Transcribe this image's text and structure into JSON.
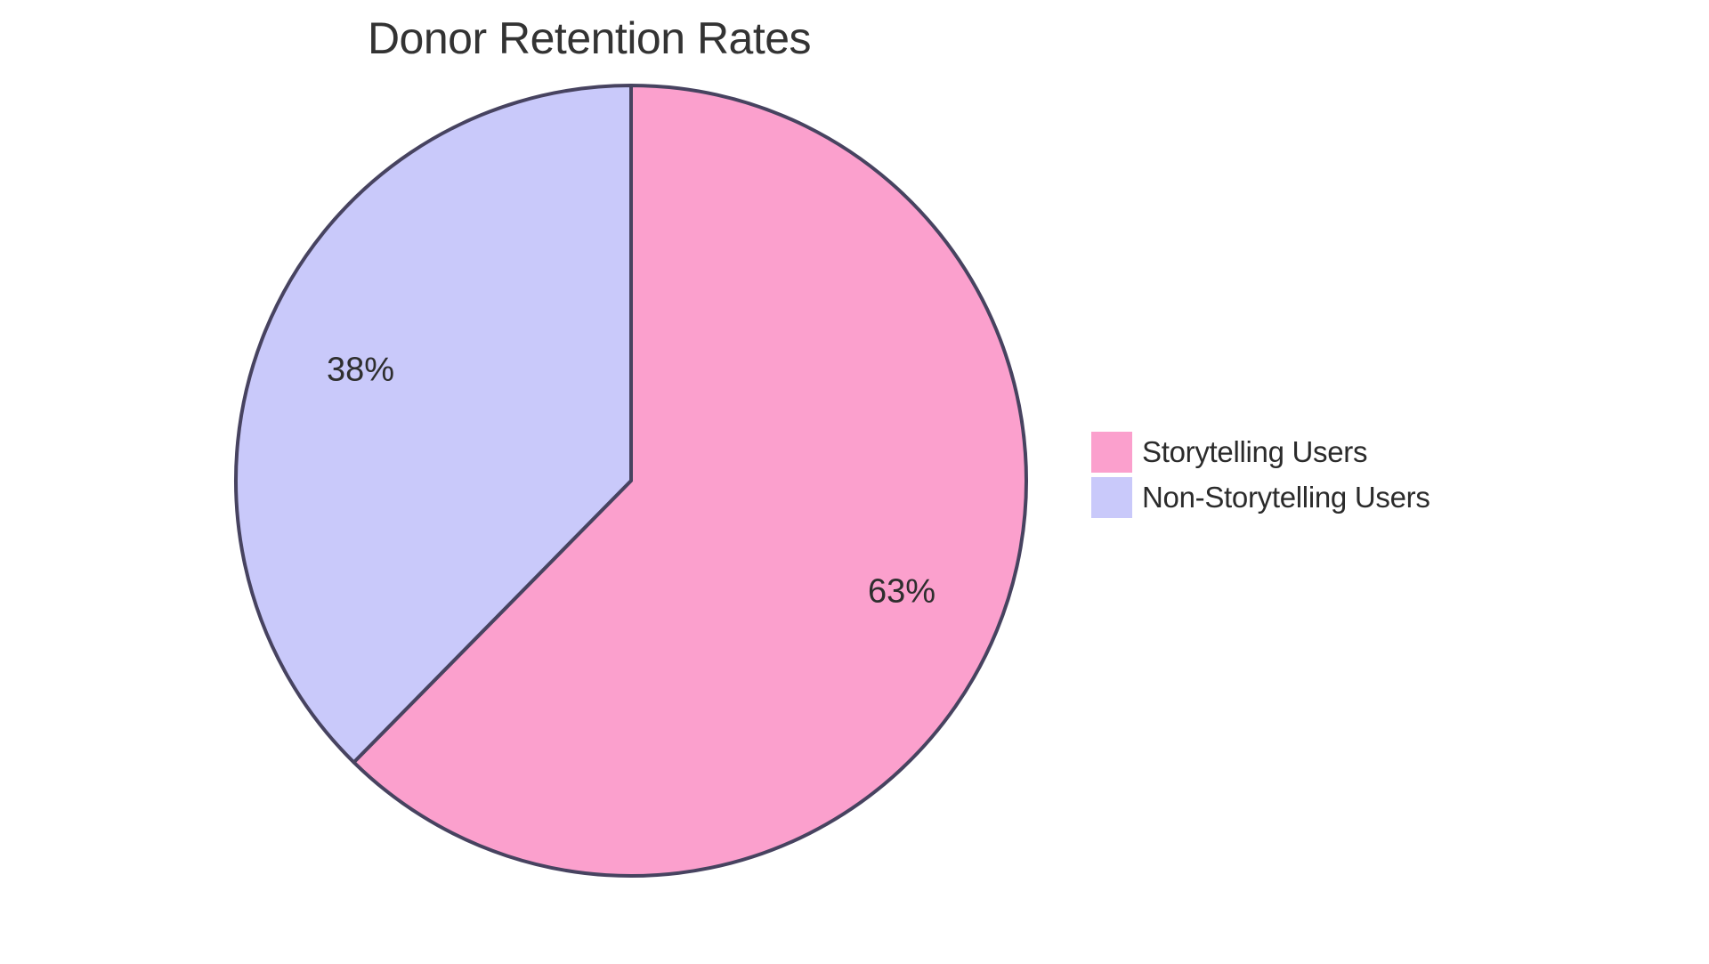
{
  "chart": {
    "title": "Donor Retention Rates"
  },
  "chart_data": {
    "type": "pie",
    "title": "Donor Retention Rates",
    "slices": [
      {
        "label": "Storytelling Users",
        "value": 63,
        "percent_label": "63%",
        "color": "#FBA0CD"
      },
      {
        "label": "Non-Storytelling Users",
        "value": 38,
        "percent_label": "38%",
        "color": "#C9C9FA"
      }
    ],
    "start_angle_deg": 0,
    "direction": "clockwise",
    "slice_border_color": "#474360",
    "slice_border_width": 4,
    "percent_label_color": "#2e2e2e",
    "title_color": "#333333",
    "legend_position": "right",
    "background_color": "#ffffff"
  }
}
